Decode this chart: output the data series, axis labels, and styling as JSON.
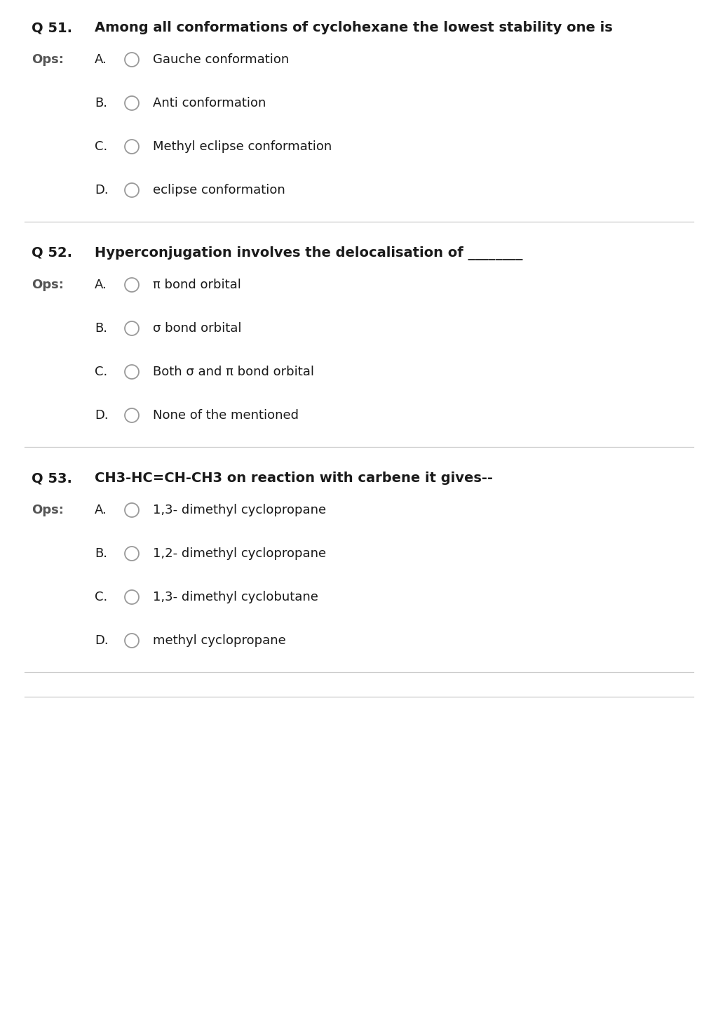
{
  "background_color": "#ffffff",
  "text_color": "#1a1a1a",
  "label_color": "#555555",
  "divider_color": "#cccccc",
  "questions": [
    {
      "number": "Q 51.",
      "question": "Among all conformations of cyclohexane the lowest stability one is",
      "ops_label": "Ops:",
      "options": [
        {
          "letter": "A.",
          "text": "Gauche conformation"
        },
        {
          "letter": "B.",
          "text": "Anti conformation"
        },
        {
          "letter": "C.",
          "text": "Methyl eclipse conformation"
        },
        {
          "letter": "D.",
          "text": "eclipse conformation"
        }
      ]
    },
    {
      "number": "Q 52.",
      "question": "Hyperconjugation involves the delocalisation of ________",
      "ops_label": "Ops:",
      "options": [
        {
          "letter": "A.",
          "text": "π bond orbital"
        },
        {
          "letter": "B.",
          "text": "σ bond orbital"
        },
        {
          "letter": "C.",
          "text": "Both σ and π bond orbital"
        },
        {
          "letter": "D.",
          "text": "None of the mentioned"
        }
      ]
    },
    {
      "number": "Q 53.",
      "question": "CH3-HC=CH-CH3 on reaction with carbene it gives--",
      "ops_label": "Ops:",
      "options": [
        {
          "letter": "A.",
          "text": "1,3- dimethyl cyclopropane"
        },
        {
          "letter": "B.",
          "text": "1,2- dimethyl cyclopropane"
        },
        {
          "letter": "C.",
          "text": "1,3- dimethyl cyclobutane"
        },
        {
          "letter": "D.",
          "text": "methyl cyclopropane"
        }
      ]
    }
  ],
  "q_number_fontsize": 14,
  "question_fontsize": 14,
  "ops_fontsize": 13,
  "option_letter_fontsize": 13,
  "option_text_fontsize": 13,
  "fig_width": 10.24,
  "fig_height": 14.58,
  "dpi": 100
}
